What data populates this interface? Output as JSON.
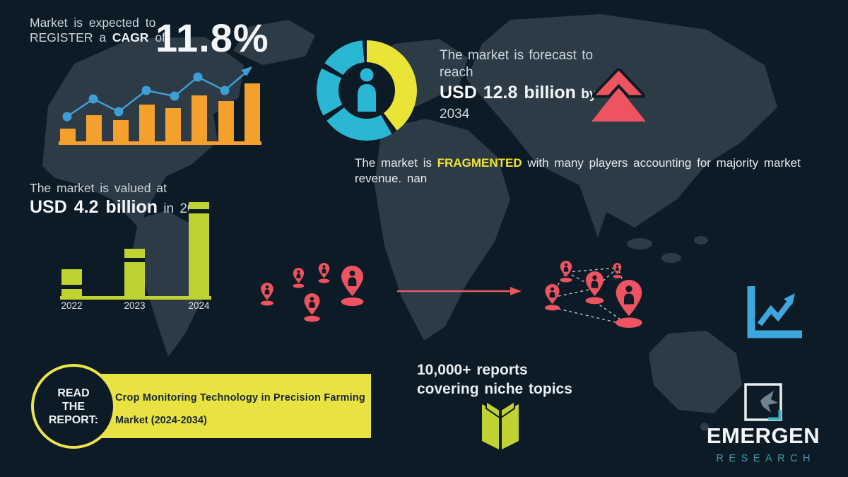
{
  "colors": {
    "background": "#0d1b26",
    "map": "#2c3b46",
    "orange": "#f4a02c",
    "trend_blue": "#3d9fd6",
    "donut_yellow": "#e9e436",
    "donut_cyan": "#29b7d4",
    "highlight_yellow": "#f4e52e",
    "banner_yellow": "#e9e243",
    "pin_red": "#ee5460",
    "green": "#bfd232",
    "icon_blue": "#3ea7dd",
    "logo_teal": "#4398ad",
    "text_light": "#ccd6db",
    "text_white": "#f2f6f8"
  },
  "icons": [
    "growth-bar-chart-icon",
    "person-donut-icon",
    "double-up-arrow-icon",
    "map-pin-icon",
    "network-pins-icon",
    "line-chart-icon",
    "open-book-icon",
    "logo-square-bird-icon"
  ],
  "cagr_block": {
    "line1": "Market is expected to",
    "line2_pre": "REGISTER a ",
    "line2_bold": "CAGR",
    "line2_post": " of",
    "value": "11.8%"
  },
  "forecast_block": {
    "line1": "The market is forecast to",
    "line2": "reach",
    "value_bold": "USD 12.8 billion",
    "value_suffix": " by",
    "line4": "2034"
  },
  "fragmented_block": {
    "pre": "The market is ",
    "highlight": "FRAGMENTED",
    "post": " with many players accounting for majority market revenue. nan"
  },
  "valuation_block": {
    "line1": "The market is valued at",
    "value_bold": "USD 4.2 billion",
    "value_suffix": " in 2024"
  },
  "reports_block": {
    "line1": "10,000+ reports",
    "line2": "covering niche topics"
  },
  "read_report": {
    "circle_lines": [
      "READ",
      "THE",
      "REPORT:"
    ],
    "banner_line1": "Crop Monitoring Technology in Precision Farming",
    "banner_line2": "Market (2024-2034)"
  },
  "logo": {
    "name": "EMERGEN",
    "sub": "RESEARCH"
  },
  "chart_data": [
    {
      "id": "growth-trend-chart",
      "type": "bar",
      "title": "Market is expected to REGISTER a CAGR of 11.8%",
      "categories": [
        "",
        "",
        "",
        "",
        "",
        "",
        "",
        ""
      ],
      "values": [
        22,
        45,
        36,
        64,
        57,
        79,
        69,
        100
      ],
      "unit": "relative height %, decorative (no axis labels shown)",
      "trend_points": [
        [
          12,
          73
        ],
        [
          49,
          48
        ],
        [
          85,
          66
        ],
        [
          124,
          36
        ],
        [
          164,
          44
        ],
        [
          197,
          17
        ],
        [
          235,
          36
        ],
        [
          268,
          8
        ]
      ],
      "legend": false,
      "grid": false
    },
    {
      "id": "market-valuation-chart",
      "type": "bar",
      "title": "The market is valued at USD 4.2 billion in 2024",
      "categories": [
        "2022",
        "2023",
        "2024"
      ],
      "values": [
        1.3,
        2.2,
        4.2
      ],
      "unit": "USD billion (2024 labeled; earlier years estimated from bar heights)",
      "ylim": [
        0,
        4.2
      ],
      "legend": false,
      "grid": false
    }
  ]
}
